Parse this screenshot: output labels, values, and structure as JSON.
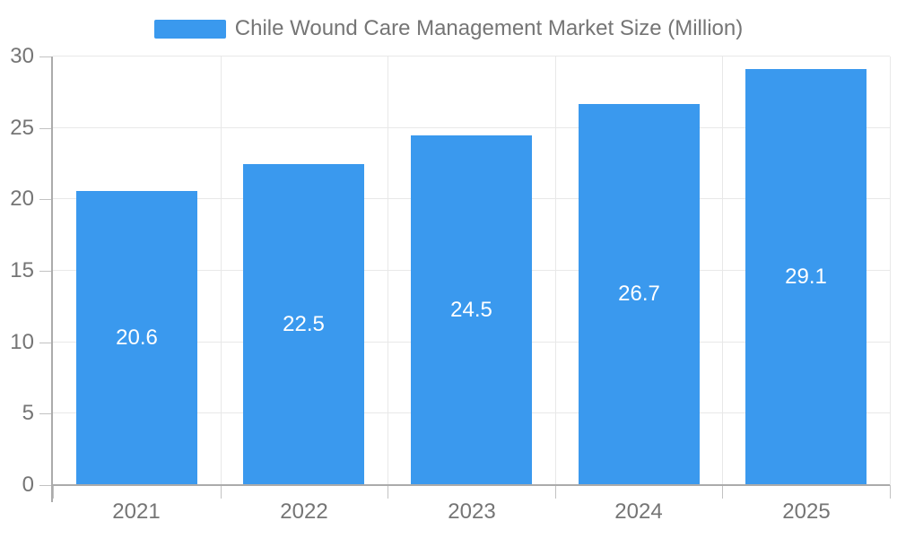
{
  "chart_data": {
    "type": "bar",
    "title": "Chile Wound Care Management Market Size (Million)",
    "categories": [
      "2021",
      "2022",
      "2023",
      "2024",
      "2025"
    ],
    "values": [
      20.6,
      22.5,
      24.5,
      26.7,
      29.1
    ],
    "bar_labels": [
      "20.6",
      "22.5",
      "24.5",
      "26.7",
      "29.1"
    ],
    "xlabel": "",
    "ylabel": "",
    "ylim": [
      0,
      30
    ],
    "yticks": [
      0,
      5,
      10,
      15,
      20,
      25,
      30
    ],
    "grid": "on",
    "legend_position": "top-center",
    "legend_label": "Chile Wound Care Management Market Size (Million)",
    "colors": {
      "bar": "#3a99ee",
      "bar_label": "#ffffff",
      "grid": "#e8e8e8",
      "axis": "#ababab",
      "tick": "#c2c2c2",
      "text": "#757575",
      "background": "#ffffff"
    }
  }
}
